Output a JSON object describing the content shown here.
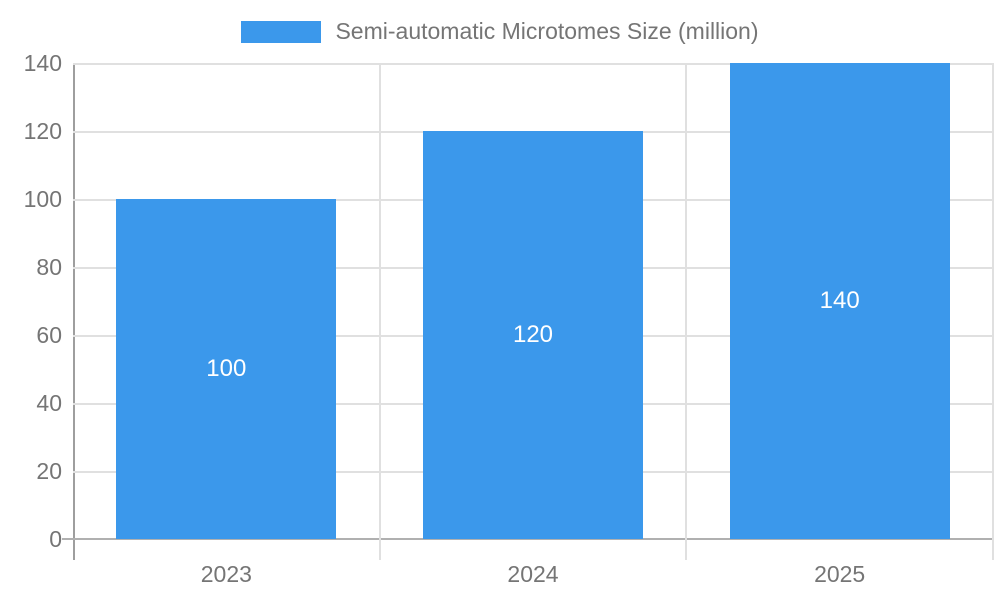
{
  "chart_data": {
    "type": "bar",
    "title": "",
    "legend": {
      "label": "Semi-automatic Microtomes Size (million)",
      "position": "top-center"
    },
    "categories": [
      "2023",
      "2024",
      "2025"
    ],
    "series": [
      {
        "name": "Semi-automatic Microtomes Size (million)",
        "values": [
          100,
          120,
          140
        ]
      }
    ],
    "data_labels": [
      "100",
      "120",
      "140"
    ],
    "xlabel": "",
    "ylabel": "",
    "ylim": [
      0,
      140
    ],
    "yticks": [
      0,
      20,
      40,
      60,
      80,
      100,
      120,
      140
    ],
    "grid": true
  },
  "colors": {
    "bar": "#3b98eb",
    "text": "#757575",
    "gridline": "#e0e0e0",
    "axis_y": "#9e9e9e",
    "axis_x": "#b0b0b0",
    "data_label": "#ffffff",
    "background": "#ffffff"
  }
}
